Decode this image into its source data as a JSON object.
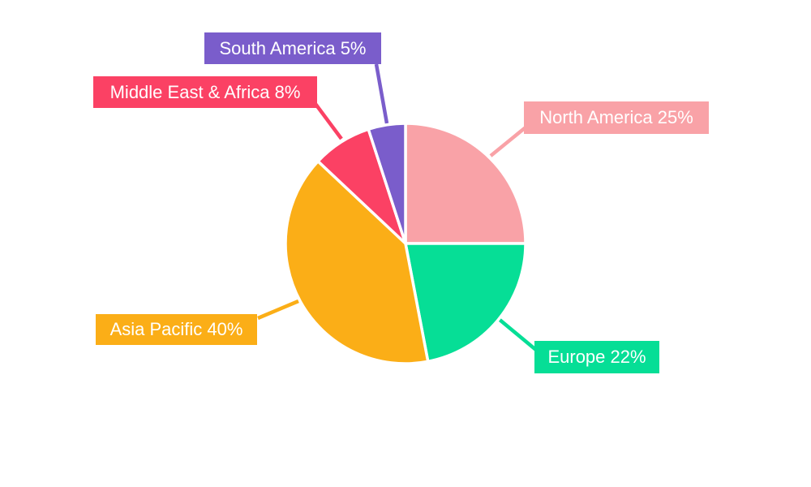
{
  "page": {
    "background": "#FFFFFF",
    "label_text_color": "#FFFFFF"
  },
  "chart_data": {
    "type": "pie",
    "title": "",
    "categories": [
      "North America",
      "Europe",
      "Asia Pacific",
      "Middle East & Africa",
      "South America"
    ],
    "values": [
      25,
      22,
      40,
      8,
      5
    ],
    "unit": "%",
    "colors": [
      "#F9A2A7",
      "#06DE96",
      "#FBAE17",
      "#FB4164",
      "#7A5DCB"
    ],
    "slice_border_color": "#FFFFFF",
    "start_angle_deg": 0,
    "direction": "clockwise",
    "legend": "none",
    "labels": [
      "North America 25%",
      "Europe 22%",
      "Asia Pacific 40%",
      "Middle East & Africa 8%",
      "South America 5%"
    ]
  }
}
